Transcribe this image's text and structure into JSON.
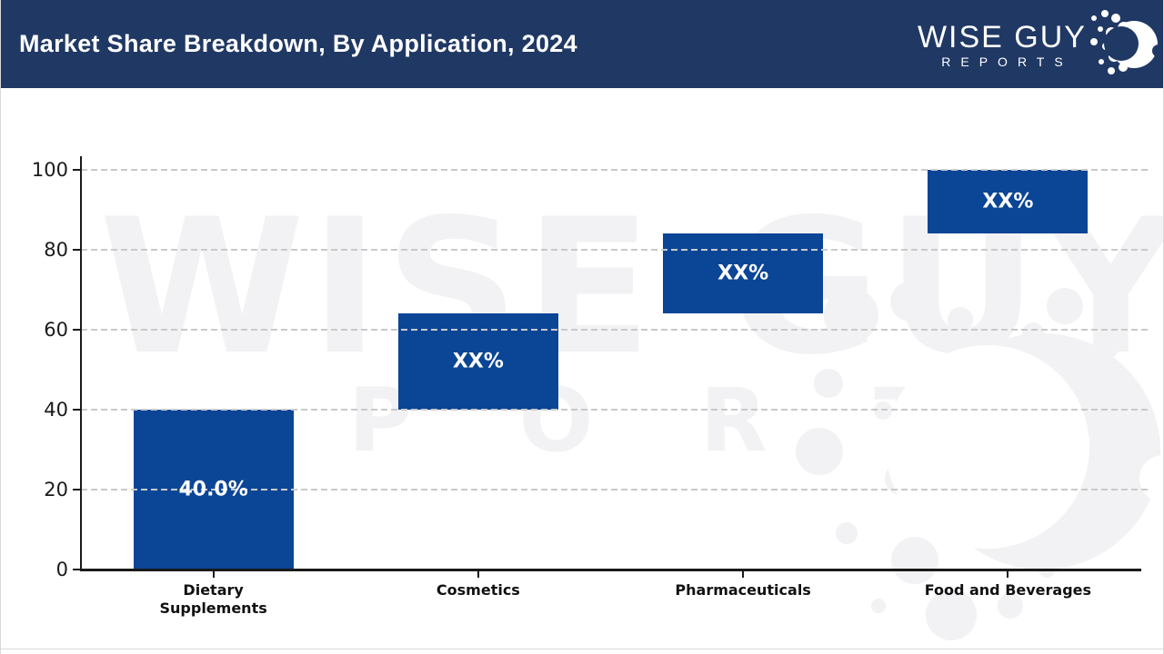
{
  "header": {
    "title": "Market Share Breakdown, By Application, 2024",
    "bg_color": "#203864",
    "logo": {
      "line1": "WISE GUY",
      "line2": "REPORTS"
    }
  },
  "watermark": {
    "line1": "WISE GUY",
    "line2": "P O R T S"
  },
  "chart_data": {
    "type": "bar",
    "subtype": "waterfall",
    "title": "Market Share Breakdown, By Application, 2024",
    "categories": [
      "Dietary\nSupplements",
      "Cosmetics",
      "Pharmaceuticals",
      "Food and Beverages"
    ],
    "bars": [
      {
        "category": "Dietary\nSupplements",
        "start": 0,
        "end": 40,
        "label": "40.0%"
      },
      {
        "category": "Cosmetics",
        "start": 40,
        "end": 64,
        "label": "XX%"
      },
      {
        "category": "Pharmaceuticals",
        "start": 64,
        "end": 84,
        "label": "XX%"
      },
      {
        "category": "Food and Beverages",
        "start": 84,
        "end": 100,
        "label": "XX%"
      }
    ],
    "xlabel": "",
    "ylabel": "",
    "ylim": [
      0,
      100
    ],
    "yticks": [
      0,
      20,
      40,
      60,
      80,
      100
    ],
    "grid": "horizontal-dashed",
    "legend": "none",
    "bar_color": "#0b4596",
    "bar_label_color": "#ffffff",
    "gridline_color": "#c9c9c9",
    "axis_color": "#1a1a1a"
  }
}
